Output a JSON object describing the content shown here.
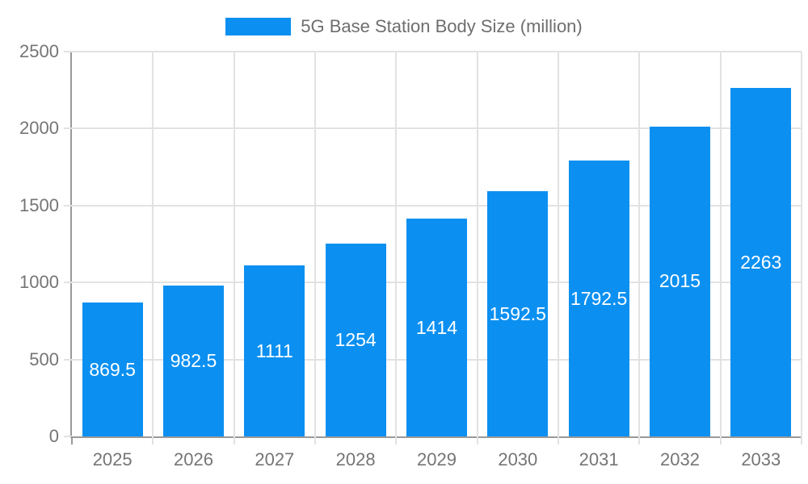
{
  "chart_data": {
    "type": "bar",
    "title": "5G Base Station Body Size (million)",
    "categories": [
      "2025",
      "2026",
      "2027",
      "2028",
      "2029",
      "2030",
      "2031",
      "2032",
      "2033"
    ],
    "values": [
      869.5,
      982.5,
      1111,
      1254,
      1414,
      1592.5,
      1792.5,
      2015,
      2263
    ],
    "value_labels": [
      "869.5",
      "982.5",
      "1111",
      "1254",
      "1414",
      "1592.5",
      "1792.5",
      "2015",
      "2263"
    ],
    "xlabel": "",
    "ylabel": "",
    "ylim": [
      0,
      2500
    ],
    "yticks": [
      0,
      500,
      1000,
      1500,
      2000,
      2500
    ],
    "grid": true,
    "legend_position": "top-center",
    "bar_label_position": "center-inside",
    "colors": {
      "bar": "#0b90f1",
      "bar_label": "#ffffff",
      "axis_line": "#999999",
      "grid_line": "#e2e2e2",
      "tick_label": "#757575",
      "legend_text": "#6e6e6e",
      "background": "#ffffff"
    }
  }
}
